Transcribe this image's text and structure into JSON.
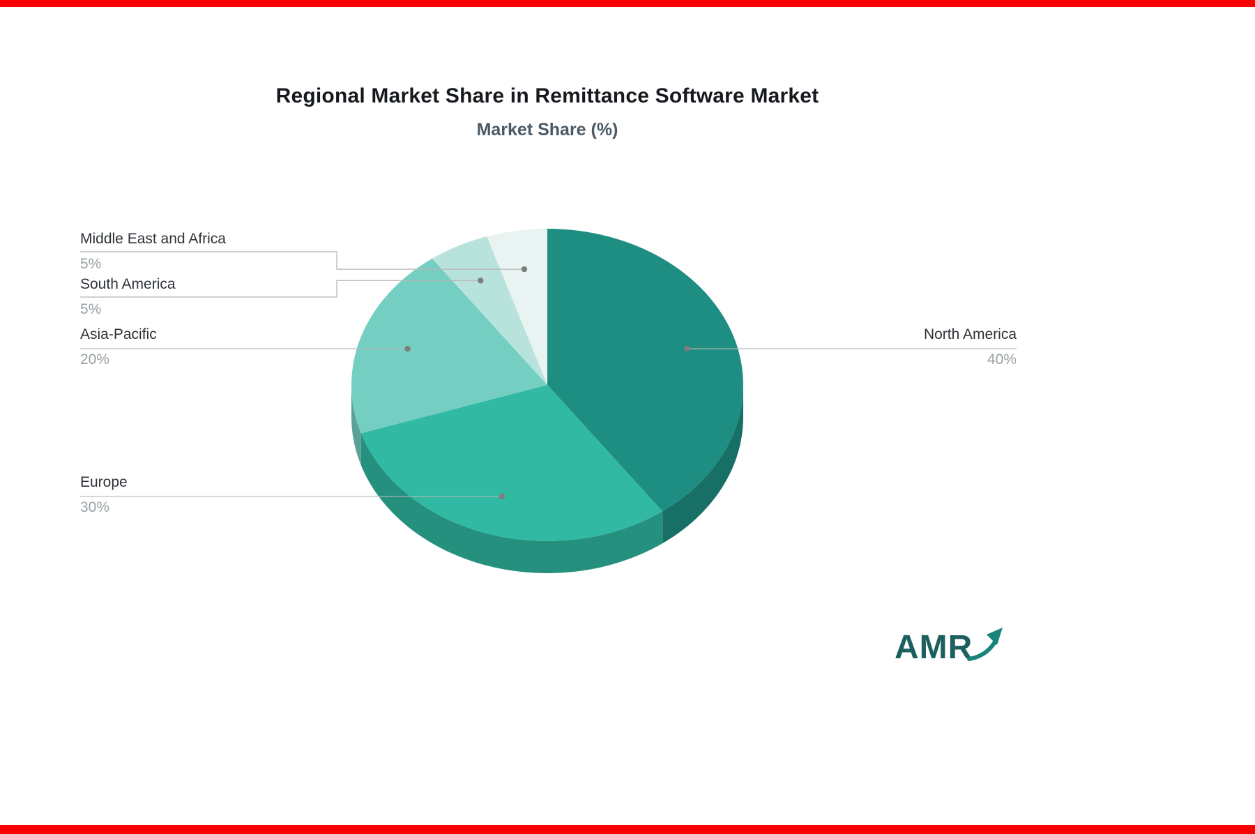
{
  "chart_data": {
    "type": "pie",
    "style": "3d-pie",
    "title": "Regional Market Share in Remittance Software Market",
    "subtitle": "Market Share (%)",
    "labels": [
      "North America",
      "Europe",
      "Asia-Pacific",
      "South America",
      "Middle East and Africa"
    ],
    "values": [
      40,
      30,
      20,
      5,
      5
    ],
    "value_labels": [
      "40%",
      "30%",
      "20%",
      "5%",
      "5%"
    ],
    "unit": "%",
    "colors": [
      "#1d8e81",
      "#31b9a3",
      "#74cfc2",
      "#b8e3dc",
      "#e9f3f1"
    ],
    "start_angle_deg": -90,
    "direction": "clockwise",
    "legend": "none",
    "label_placement": "outside-leader-lines"
  },
  "colors": {
    "background": "#ffffff",
    "title_text": "#16191d",
    "subtitle_text": "#4a5a66",
    "label_text": "#2e3338",
    "percent_text": "#98a0a4",
    "leader_line": "#b5b5b5",
    "leader_dot": "#7d7d7d",
    "red_bar": "#fa0000",
    "logo": "#1d5f5f",
    "logo_arrow": "#17857a"
  },
  "logo": {
    "text": "AMR"
  }
}
